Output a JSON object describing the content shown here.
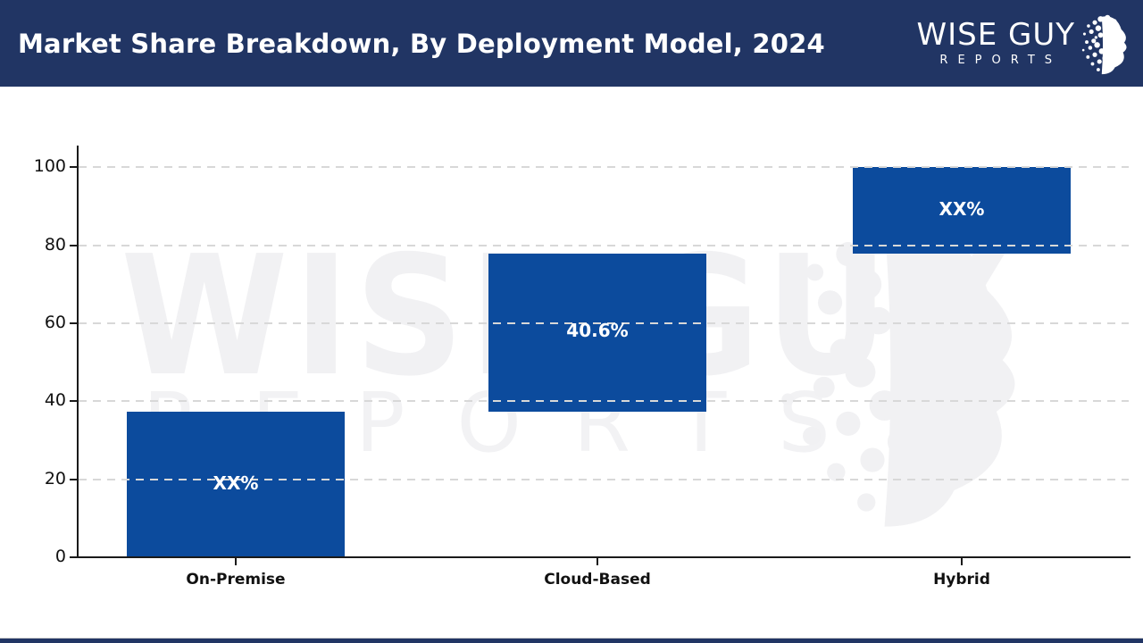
{
  "header": {
    "title": "Market Share Breakdown, By Deployment Model, 2024",
    "background_color": "#213564",
    "logo": {
      "line1": "WISE GUY",
      "line2": "REPORTS"
    }
  },
  "watermark": {
    "line1": "WISE GUY",
    "line2": "REPORTS",
    "color": "#f1f1f3"
  },
  "chart_data": {
    "type": "bar",
    "subtype": "floating-waterfall",
    "title": "Market Share Breakdown, By Deployment Model, 2024",
    "categories": [
      "On-Premise",
      "Cloud-Based",
      "Hybrid"
    ],
    "bars": [
      {
        "category": "On-Premise",
        "start": 0,
        "end": 37.3,
        "label": "XX%"
      },
      {
        "category": "Cloud-Based",
        "start": 37.3,
        "end": 77.9,
        "label": "40.6%"
      },
      {
        "category": "Hybrid",
        "start": 77.9,
        "end": 100,
        "label": "XX%"
      }
    ],
    "yticks": [
      0,
      20,
      40,
      60,
      80,
      100
    ],
    "ylim": [
      0,
      105
    ],
    "xlabel": "",
    "ylabel": "",
    "grid": "horizontal-dashed",
    "legend": "none",
    "bar_color": "#0c4b9d",
    "grid_color": "#d8d8d8",
    "axis_color": "#1a1a1a"
  },
  "footer": {
    "bar_color": "#213564"
  }
}
